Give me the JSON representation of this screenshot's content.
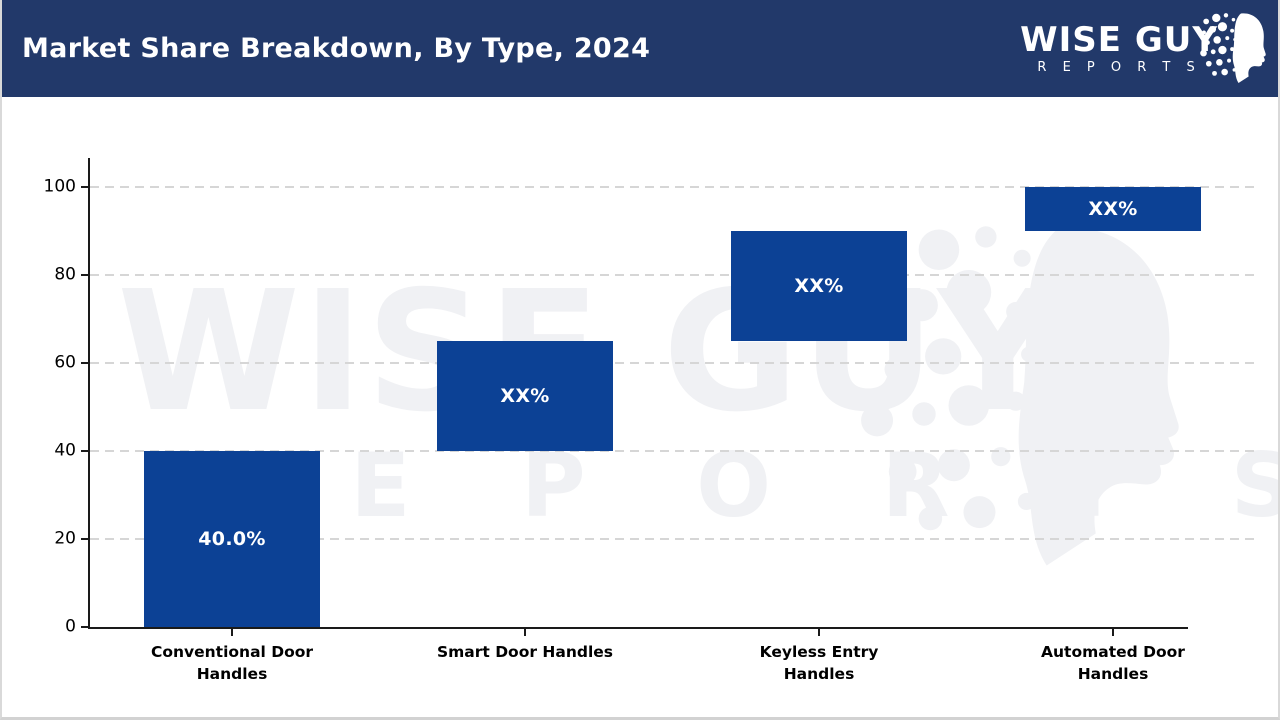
{
  "header": {
    "title": "Market Share Breakdown, By Type, 2024",
    "bg_color": "#22396A",
    "logo": {
      "line1": "WISE GUY",
      "line2": "R E P O R T S"
    }
  },
  "watermark": {
    "line1": "WISE GUY",
    "line2": "R E P O R T S"
  },
  "chart_data": {
    "type": "bar",
    "variant": "waterfall",
    "title": "Market Share Breakdown, By Type, 2024",
    "categories": [
      "Conventional Door Handles",
      "Smart Door Handles",
      "Keyless Entry Handles",
      "Automated Door Handles"
    ],
    "bars": [
      {
        "category": "Conventional Door Handles",
        "category_lines": "Conventional Door\nHandles",
        "start": 0,
        "end": 40,
        "value_label": "40.0%"
      },
      {
        "category": "Smart Door Handles",
        "category_lines": "Smart Door Handles",
        "start": 40,
        "end": 65,
        "value_label": "XX%"
      },
      {
        "category": "Keyless Entry Handles",
        "category_lines": "Keyless Entry\nHandles",
        "start": 65,
        "end": 90,
        "value_label": "XX%"
      },
      {
        "category": "Automated Door Handles",
        "category_lines": "Automated Door\nHandles",
        "start": 90,
        "end": 100,
        "value_label": "XX%"
      }
    ],
    "xlabel": "",
    "ylabel": "",
    "yticks": [
      0,
      20,
      40,
      60,
      80,
      100
    ],
    "ylim": [
      0,
      106
    ],
    "bar_color": "#0C4195",
    "grid": {
      "horizontal": true,
      "style": "dashed",
      "color": "#d6d6d6"
    },
    "legend": null
  }
}
